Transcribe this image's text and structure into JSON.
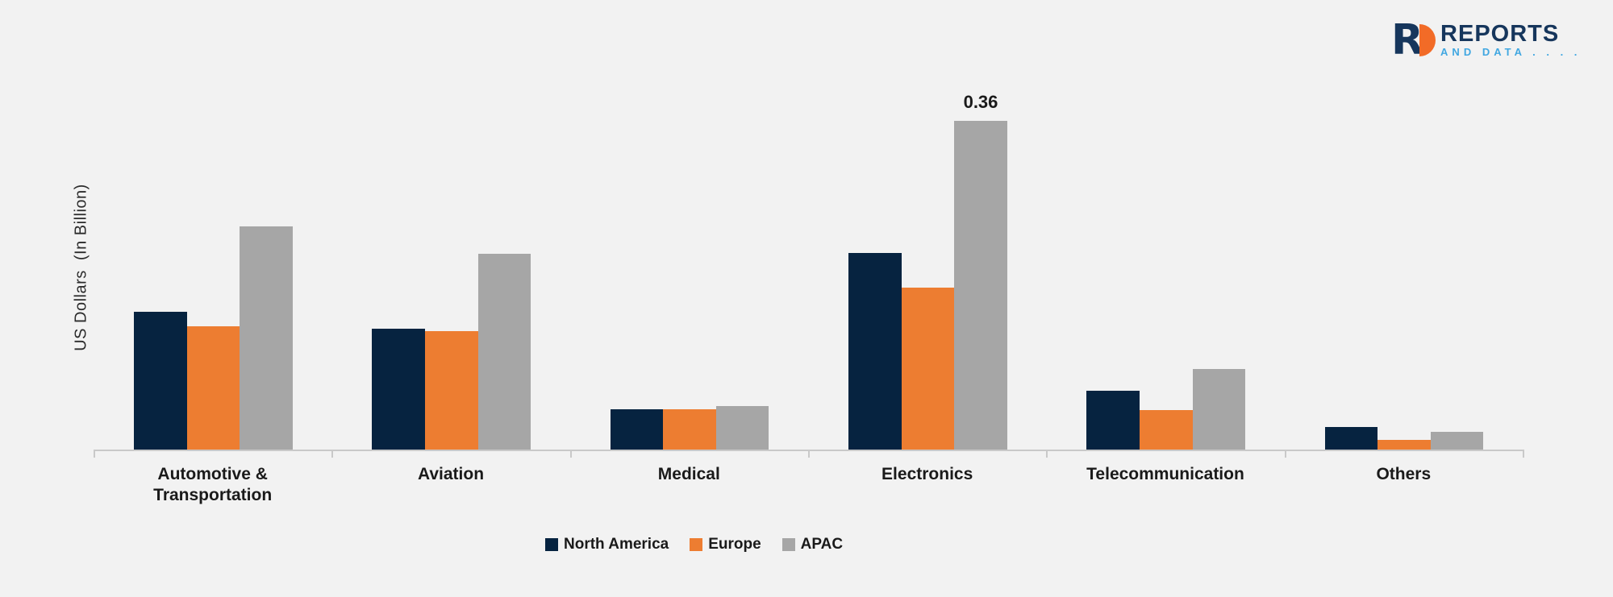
{
  "background_color": "#f2f2f2",
  "logo": {
    "line1": "REPORTS",
    "line2": "AND DATA . . . .",
    "mark_letter": "R",
    "navy": "#16365c",
    "orange": "#f26b27",
    "blue": "#41a7e1"
  },
  "chart_data": {
    "type": "bar",
    "title": "",
    "xlabel": "",
    "ylabel": "US Dollars  (In Billion)",
    "categories": [
      "Automotive & Transportation",
      "Aviation",
      "Medical",
      "Electronics",
      "Telecommunication",
      "Others"
    ],
    "series": [
      {
        "name": "North America",
        "color": "#062340",
        "values": [
          0.151,
          0.132,
          0.044,
          0.215,
          0.064,
          0.025
        ],
        "data_labels": [
          null,
          null,
          null,
          null,
          null,
          null
        ]
      },
      {
        "name": "Europe",
        "color": "#ed7d31",
        "values": [
          0.135,
          0.13,
          0.044,
          0.177,
          0.043,
          0.011
        ],
        "data_labels": [
          null,
          null,
          null,
          null,
          null,
          null
        ]
      },
      {
        "name": "APAC",
        "color": "#a6a6a6",
        "values": [
          0.244,
          0.214,
          0.048,
          0.36,
          0.088,
          0.019
        ],
        "data_labels": [
          null,
          null,
          null,
          "0.36",
          null,
          null
        ]
      }
    ],
    "ylim": [
      0,
      0.4
    ],
    "grid": false,
    "legend_position": "bottom-center",
    "axis_color": "#c9c9c9",
    "text_color": "#1a1a1a"
  }
}
